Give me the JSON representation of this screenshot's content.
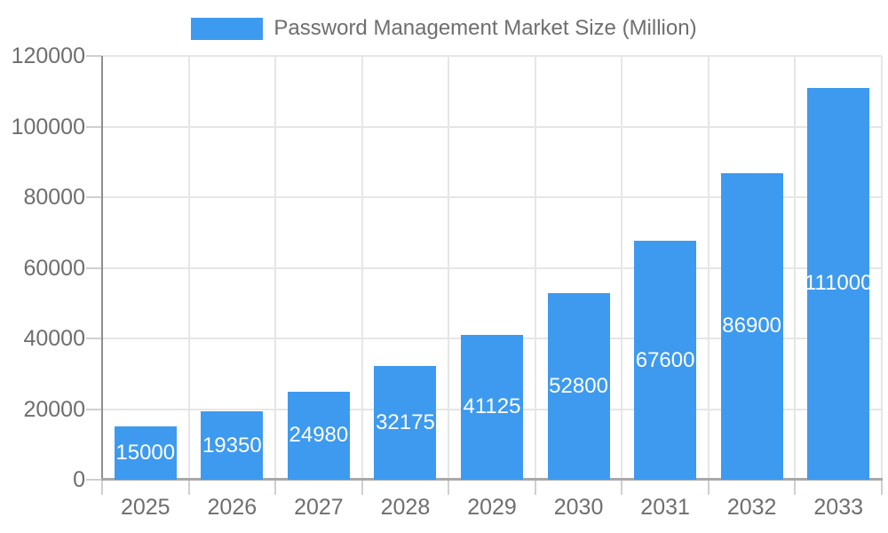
{
  "chart_data": {
    "type": "bar",
    "title": "Password Management Market Size (Million)",
    "legend": {
      "position": "top",
      "label": "Password Management Market Size (Million)"
    },
    "categories": [
      "2025",
      "2026",
      "2027",
      "2028",
      "2029",
      "2030",
      "2031",
      "2032",
      "2033"
    ],
    "series": [
      {
        "name": "Password Management Market Size (Million)",
        "values": [
          15000,
          19350,
          24980,
          32175,
          41125,
          52800,
          67600,
          86900,
          111000
        ]
      }
    ],
    "value_labels": [
      "15000",
      "19350",
      "24980",
      "32175",
      "41125",
      "52800",
      "67600",
      "86900",
      "111000"
    ],
    "xlabel": "",
    "ylabel": "",
    "ylim": [
      0,
      120000
    ],
    "ytick_interval": 20000,
    "ytick_labels": [
      "0",
      "20000",
      "40000",
      "60000",
      "80000",
      "100000",
      "120000"
    ],
    "grid": true,
    "colors": {
      "bar": "#3e9aee",
      "grid_line": "#e6e6e6",
      "tick": "#cfcfcf",
      "axis_line": "#8f8f8f",
      "baseline": "#a8a8a8",
      "axis_text": "#6e6e6e",
      "value_label_text": "#ffffff",
      "background": "#ffffff"
    }
  }
}
